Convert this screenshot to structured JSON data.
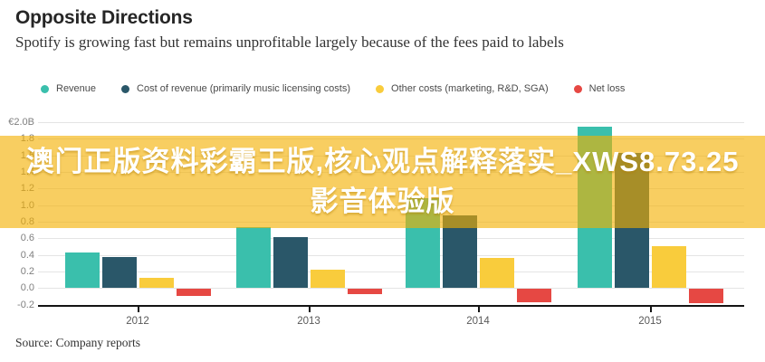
{
  "header": {
    "title": "Opposite Directions",
    "subtitle": "Spotify is growing fast but remains unprofitable largely because of the fees paid to labels"
  },
  "overlay": {
    "line1": "澳门正版资料彩霸王版,核心观点解释落实_XWS8.73.25",
    "line2": "影音体验版",
    "background_color": "#F4B000",
    "text_color": "#FFFFFF"
  },
  "source": "Source: Company reports",
  "chart_data": {
    "type": "bar",
    "title": "Opposite Directions",
    "subtitle": "Spotify is growing fast but remains unprofitable largely because of the fees paid to labels",
    "categories": [
      "2012",
      "2013",
      "2014",
      "2015"
    ],
    "series": [
      {
        "key": "revenue",
        "name": "Revenue",
        "color": "#3ABFAC",
        "values": [
          0.43,
          0.74,
          1.08,
          1.95
        ]
      },
      {
        "key": "cost-of-revenue",
        "name": "Cost of revenue (primarily music licensing costs)",
        "color": "#2A5769",
        "values": [
          0.38,
          0.61,
          0.88,
          1.63
        ]
      },
      {
        "key": "other-costs",
        "name": "Other costs (marketing, R&D, SGA)",
        "color": "#F9CC3C",
        "values": [
          0.12,
          0.22,
          0.36,
          0.51
        ]
      },
      {
        "key": "net-loss",
        "name": "Net loss",
        "color": "#E64843",
        "values": [
          -0.09,
          -0.06,
          -0.16,
          -0.17
        ]
      }
    ],
    "xlabel": "",
    "ylabel": "",
    "y_axis": {
      "unit_prefix_label": "€2.0B",
      "tick_labels": [
        "€2.0B",
        "1.8",
        "1.6",
        "1.4",
        "1.2",
        "1.0",
        "0.8",
        "0.6",
        "0.4",
        "0.2",
        "0.0",
        "-0.2"
      ],
      "max": 2.0,
      "min": -0.2,
      "step": 0.2
    },
    "grid": true,
    "legend_position": "top"
  }
}
